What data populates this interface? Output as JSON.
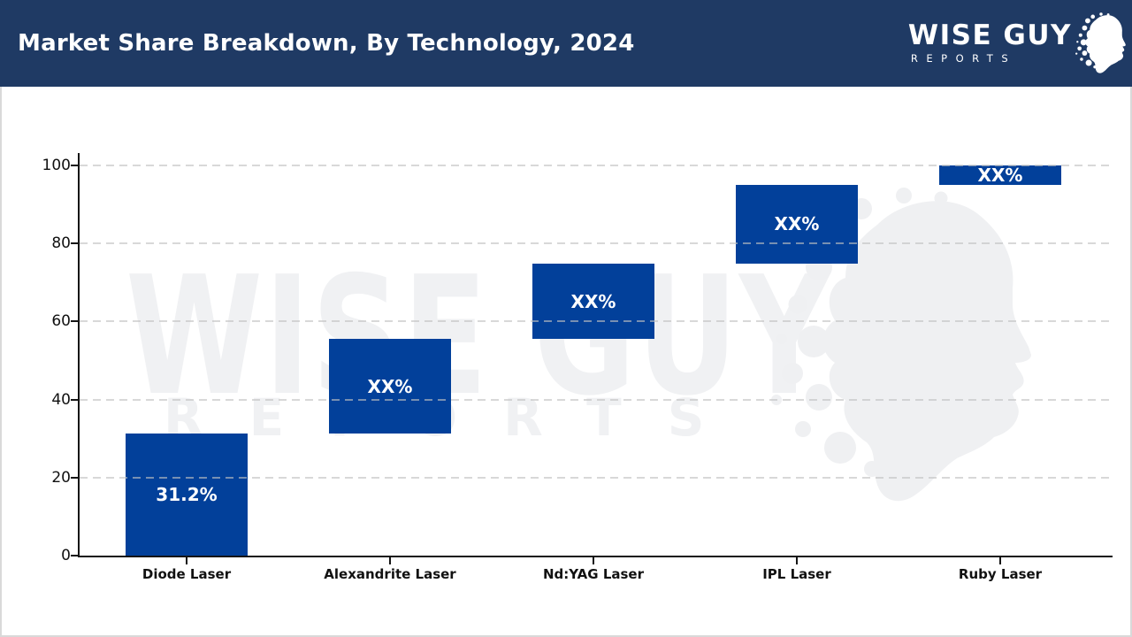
{
  "header": {
    "title": "Market Share Breakdown, By Technology, 2024",
    "logo": {
      "line1": "WISE GUY",
      "line2": "REPORTS",
      "face_icon": "dotted-head-profile"
    }
  },
  "watermark": {
    "line1": "WISE GUY",
    "line2": "REPORTS",
    "face_icon": "dotted-head-profile"
  },
  "chart_data": {
    "type": "bar",
    "variant": "waterfall-floating-bars",
    "title": "Market Share Breakdown, By Technology, 2024",
    "categories": [
      "Diode Laser",
      "Alexandrite Laser",
      "Nd:YAG Laser",
      "IPL Laser",
      "Ruby Laser"
    ],
    "bars": [
      {
        "category": "Diode Laser",
        "start": 0,
        "end": 31.2,
        "label": "31.2%"
      },
      {
        "category": "Alexandrite Laser",
        "start": 31.2,
        "end": 55.5,
        "label": "XX%"
      },
      {
        "category": "Nd:YAG Laser",
        "start": 55.5,
        "end": 74.8,
        "label": "XX%"
      },
      {
        "category": "IPL Laser",
        "start": 74.8,
        "end": 95.1,
        "label": "XX%"
      },
      {
        "category": "Ruby Laser",
        "start": 95.1,
        "end": 100,
        "label": "XX%"
      }
    ],
    "xlabel": "",
    "ylabel": "",
    "ylim": [
      0,
      103
    ],
    "yticks": [
      0,
      20,
      40,
      60,
      80,
      100
    ],
    "grid": "horizontal-dashed",
    "legend": "none",
    "colors": {
      "bar": "#02409a",
      "bar_label": "#ffffff",
      "header_bg": "#1f3a64",
      "grid": "#c9c9c9",
      "axis": "#151515",
      "watermark": "#f0f1f3"
    }
  }
}
